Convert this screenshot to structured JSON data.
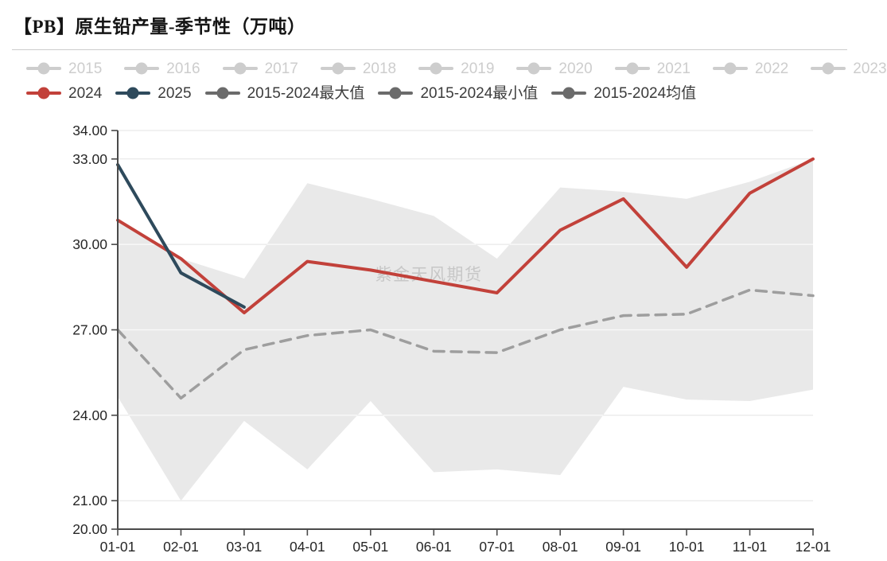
{
  "header": {
    "title": "【PB】原生铅产量-季节性（万吨）"
  },
  "watermark": "紫金天风期货",
  "legend": {
    "muted_years": [
      "2015",
      "2016",
      "2017",
      "2018",
      "2019",
      "2020",
      "2021",
      "2022",
      "2023"
    ],
    "muted_color": "#cdcdcd",
    "active_text_color": "#3c3c3c",
    "active": [
      {
        "label": "2024",
        "color": "#c2413a"
      },
      {
        "label": "2025",
        "color": "#2e4a5c"
      },
      {
        "label": "2015-2024最大值",
        "color": "#6b6b6b"
      },
      {
        "label": "2015-2024最小值",
        "color": "#6b6b6b"
      },
      {
        "label": "2015-2024均值",
        "color": "#6b6b6b"
      }
    ]
  },
  "chart_data": {
    "type": "line",
    "title": "【PB】原生铅产量-季节性（万吨）",
    "x": [
      "01-01",
      "02-01",
      "03-01",
      "04-01",
      "05-01",
      "06-01",
      "07-01",
      "08-01",
      "09-01",
      "10-01",
      "11-01",
      "12-01"
    ],
    "y_ticks": [
      20,
      21,
      24,
      27,
      30,
      33,
      34
    ],
    "ylim": [
      20,
      34
    ],
    "grid": true,
    "legend_position": "top",
    "band": {
      "name_top": "2015-2024最大值",
      "name_bottom": "2015-2024最小值",
      "max": [
        30.85,
        29.5,
        28.8,
        32.15,
        31.6,
        31.0,
        29.5,
        32.0,
        31.85,
        31.6,
        32.2,
        33.0
      ],
      "min": [
        24.65,
        21.0,
        23.8,
        22.1,
        24.5,
        22.0,
        22.1,
        21.9,
        25.0,
        24.55,
        24.5,
        24.9
      ],
      "fill": "#e9e9e9"
    },
    "series": [
      {
        "name": "2015-2024均值",
        "color": "#9e9e9e",
        "dashed": true,
        "values": [
          27.0,
          24.6,
          26.3,
          26.8,
          27.0,
          26.25,
          26.2,
          27.0,
          27.5,
          27.55,
          28.4,
          28.2
        ]
      },
      {
        "name": "2024",
        "color": "#c2413a",
        "dashed": false,
        "values": [
          30.85,
          29.5,
          27.6,
          29.4,
          29.1,
          28.7,
          28.3,
          30.5,
          31.6,
          29.2,
          31.8,
          33.0
        ]
      },
      {
        "name": "2025",
        "color": "#2e4a5c",
        "dashed": false,
        "values": [
          32.8,
          29.0,
          27.8
        ]
      }
    ],
    "axis_color": "#4a4a4a",
    "grid_color": "#e3e3e3",
    "label_color": "#262626",
    "watermark_color": "#c7c7c7"
  }
}
